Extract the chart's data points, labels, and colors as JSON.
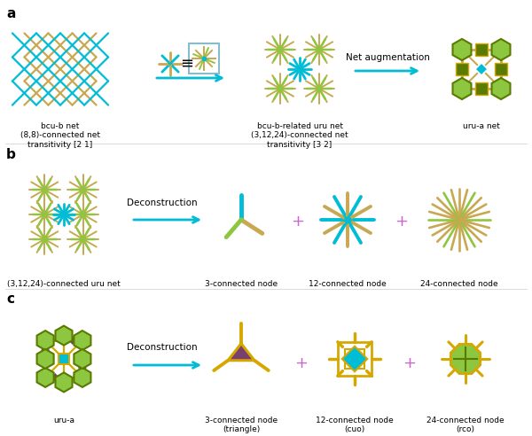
{
  "bg_color": "#ffffff",
  "cyan_color": "#00bcd4",
  "gold_color": "#c8a850",
  "green_color": "#8dc63f",
  "dark_green": "#5a7a00",
  "yellow_color": "#d4a800",
  "purple_color": "#7b3f6e",
  "arrow_color": "#00bcd4",
  "plus_color": "#cc66cc",
  "panel_a_label": "a",
  "panel_b_label": "b",
  "panel_c_label": "c",
  "label_bcu_b": "bcu-b net\n(8,8)-connected net\ntransitivity [2 1]",
  "label_bcu_b_uru": "bcu-b-related uru net\n(3,12,24)-connected net\ntransitivity [3 2]",
  "label_uru_a": "uru-a net",
  "arrow_text_a": "Net augmentation",
  "label_uru_net": "(3,12,24)-connected uru net",
  "label_3conn": "3-connected node",
  "label_12conn": "12-connected node",
  "label_24conn": "24-connected node",
  "decon_text": "Deconstruction",
  "label_uru_a_c": "uru-a",
  "label_3conn_c": "3-connected node\n(triangle)",
  "label_12conn_c": "12-connected node\n(cuo)",
  "label_24conn_c": "24-connected node\n(rco)",
  "figsize": [
    6.0,
    4.92
  ],
  "dpi": 100
}
